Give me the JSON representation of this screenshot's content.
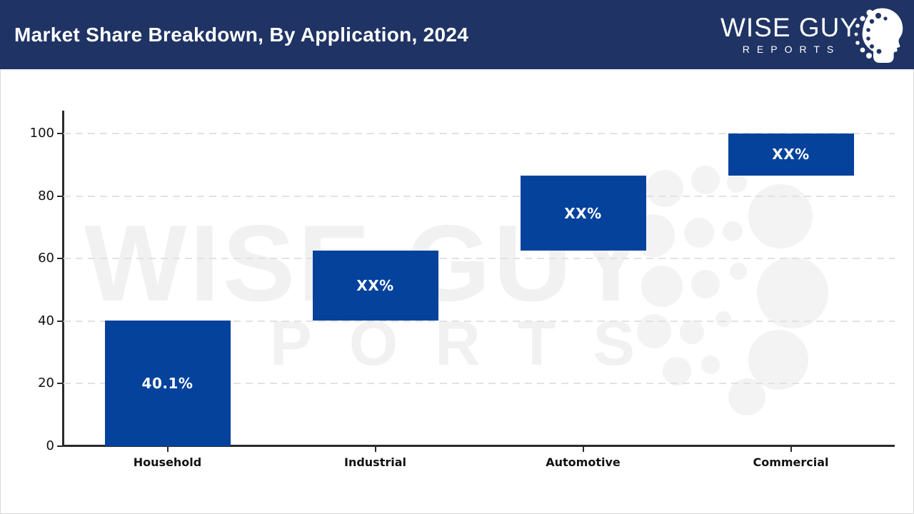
{
  "header": {
    "title": "Market Share Breakdown, By Application, 2024",
    "bg_color": "#1f3364",
    "logo": {
      "line1": "WISE GUY",
      "line2": "REPORTS"
    }
  },
  "watermark": {
    "line1": "WISE GUY",
    "line2": "PORTS"
  },
  "chart_data": {
    "type": "bar",
    "subtype": "waterfall",
    "title": "Market Share Breakdown, By Application, 2024",
    "categories": [
      "Household",
      "Industrial",
      "Automotive",
      "Commercial"
    ],
    "segments": [
      {
        "category": "Household",
        "start": 0,
        "end": 40.1,
        "label": "40.1%"
      },
      {
        "category": "Industrial",
        "start": 40.1,
        "end": 62.5,
        "label": "XX%"
      },
      {
        "category": "Automotive",
        "start": 62.5,
        "end": 86.5,
        "label": "XX%"
      },
      {
        "category": "Commercial",
        "start": 86.6,
        "end": 100,
        "label": "XX%"
      }
    ],
    "xlabel": "",
    "ylabel": "",
    "ylim": [
      0,
      107
    ],
    "yticks": [
      0,
      20,
      40,
      60,
      80,
      100
    ],
    "grid": "horizontal-dashed",
    "legend": "none",
    "bar_color": "#04429c",
    "bar_label_color": "#ffffff",
    "axis_color": "#2a2a2a",
    "grid_color": "#e2e2e2"
  }
}
